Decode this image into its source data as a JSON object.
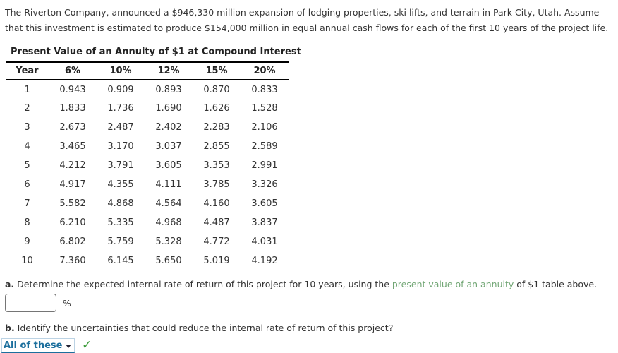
{
  "intro": {
    "text": "The Riverton Company, announced a $946,330 million expansion of lodging properties, ski lifts, and terrain in Park City, Utah. Assume that this investment is estimated to produce $154,000 million in equal annual cash flows for each of the first 10 years of the project life."
  },
  "annuity_table": {
    "title": "Present Value of an Annuity of $1 at Compound Interest",
    "columns": [
      "Year",
      "6%",
      "10%",
      "12%",
      "15%",
      "20%"
    ],
    "rows": [
      [
        "1",
        "0.943",
        "0.909",
        "0.893",
        "0.870",
        "0.833"
      ],
      [
        "2",
        "1.833",
        "1.736",
        "1.690",
        "1.626",
        "1.528"
      ],
      [
        "3",
        "2.673",
        "2.487",
        "2.402",
        "2.283",
        "2.106"
      ],
      [
        "4",
        "3.465",
        "3.170",
        "3.037",
        "2.855",
        "2.589"
      ],
      [
        "5",
        "4.212",
        "3.791",
        "3.605",
        "3.353",
        "2.991"
      ],
      [
        "6",
        "4.917",
        "4.355",
        "4.111",
        "3.785",
        "3.326"
      ],
      [
        "7",
        "5.582",
        "4.868",
        "4.564",
        "4.160",
        "3.605"
      ],
      [
        "8",
        "6.210",
        "5.335",
        "4.968",
        "4.487",
        "3.837"
      ],
      [
        "9",
        "6.802",
        "5.759",
        "5.328",
        "4.772",
        "4.031"
      ],
      [
        "10",
        "7.360",
        "6.145",
        "5.650",
        "5.019",
        "4.192"
      ]
    ]
  },
  "question_a": {
    "label": "a.",
    "text_before_link": " Determine the expected internal rate of return of this project for 10 years, using the ",
    "link_text": "present value of an annuity",
    "text_after_link": " of $1 table above.",
    "answer_value": "",
    "unit": "%"
  },
  "question_b": {
    "label": "b.",
    "text": " Identify the uncertainties that could reduce the internal rate of return of this project?",
    "selected_option": "All of these"
  },
  "icons": {
    "dropdown_arrow": "css-triangle-down",
    "checkmark": "✓"
  },
  "colors": {
    "link_green": "#71a674",
    "select_blue": "#1c6f9d",
    "check_green": "#3f9c3c",
    "text": "#333333"
  }
}
